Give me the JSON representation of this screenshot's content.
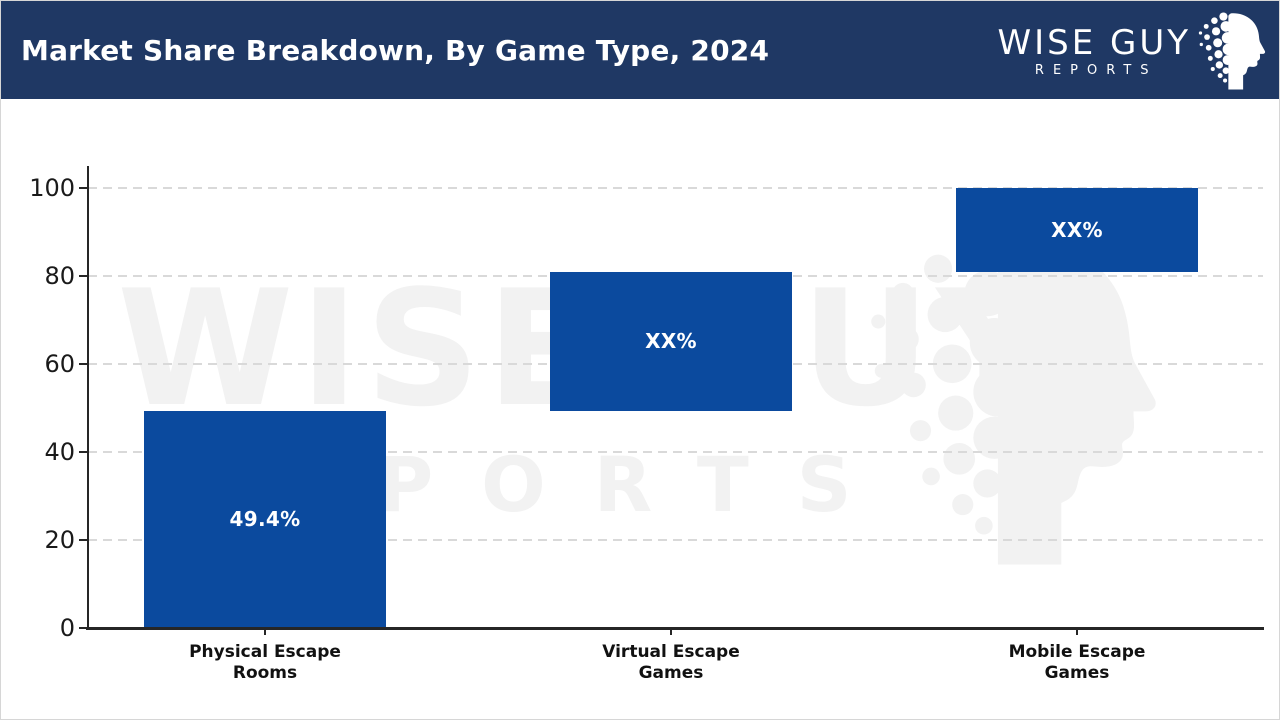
{
  "header": {
    "title": "Market Share Breakdown, By Game Type, 2024",
    "bg_color": "#1f3864",
    "logo": {
      "line1": "WISE GUY",
      "line2": "REPORTS"
    }
  },
  "watermark": {
    "line1": "WISE GUY",
    "line2": "REPORTS",
    "color": "#f2f2f2"
  },
  "chart_data": {
    "type": "bar",
    "subtype": "waterfall",
    "title": "Market Share Breakdown, By Game Type, 2024",
    "xlabel": "",
    "ylabel": "",
    "ylim": [
      0,
      100
    ],
    "yticks": [
      0,
      20,
      40,
      60,
      80,
      100
    ],
    "grid": "horizontal-dashed",
    "grid_color": "#d9d9d9",
    "axis_color": "#262626",
    "bar_color": "#0b4a9e",
    "label_color": "#ffffff",
    "categories": [
      {
        "line1": "Physical Escape",
        "line2": "Rooms"
      },
      {
        "line1": "Virtual Escape",
        "line2": "Games"
      },
      {
        "line1": "Mobile Escape",
        "line2": "Games"
      }
    ],
    "series": [
      {
        "name": "Market Share",
        "segments": [
          {
            "category": "Physical Escape Rooms",
            "start": 0,
            "end": 49.4,
            "label": "49.4%"
          },
          {
            "category": "Virtual Escape Games",
            "start": 49.4,
            "end": 81,
            "label": "XX%"
          },
          {
            "category": "Mobile Escape Games",
            "start": 81,
            "end": 100,
            "label": "XX%"
          }
        ]
      }
    ]
  }
}
